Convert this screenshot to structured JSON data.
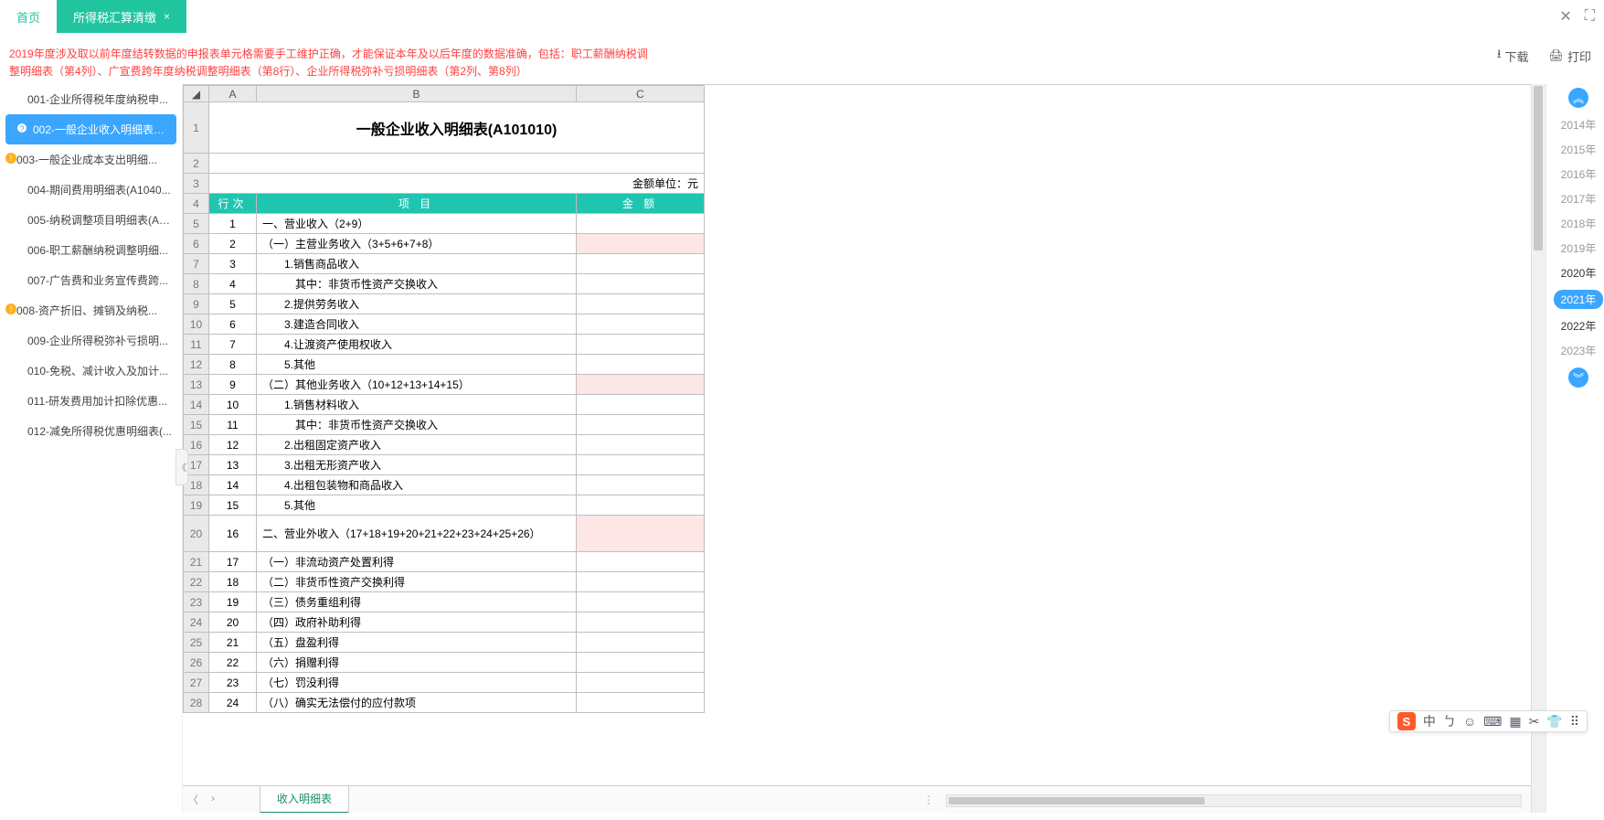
{
  "tabs": {
    "home": "首页",
    "active": "所得税汇算清缴"
  },
  "notice": "2019年度涉及取以前年度结转数据的申报表单元格需要手工维护正确，才能保证本年及以后年度的数据准确，包括：职工薪酬纳税调整明细表（第4列）、广宣费跨年度纳税调整明细表（第8行）、企业所得税弥补亏损明细表（第2列、第8列）",
  "toolbar": {
    "download": "下载",
    "print": "打印"
  },
  "sidebar": [
    {
      "label": "001-企业所得税年度纳税申...",
      "badge": null
    },
    {
      "label": "002-一般企业收入明细表(A1...",
      "badge": "q",
      "active": true
    },
    {
      "label": "003-一般企业成本支出明细...",
      "badge": "w"
    },
    {
      "label": "004-期间费用明细表(A1040...",
      "badge": null
    },
    {
      "label": "005-纳税调整项目明细表(A1...",
      "badge": null
    },
    {
      "label": "006-职工薪酬纳税调整明细...",
      "badge": null
    },
    {
      "label": "007-广告费和业务宣传费跨...",
      "badge": null
    },
    {
      "label": "008-资产折旧、摊销及纳税...",
      "badge": "w"
    },
    {
      "label": "009-企业所得税弥补亏损明...",
      "badge": null
    },
    {
      "label": "010-免税、减计收入及加计...",
      "badge": null
    },
    {
      "label": "011-研发费用加计扣除优惠...",
      "badge": null
    },
    {
      "label": "012-减免所得税优惠明细表(...",
      "badge": null
    }
  ],
  "sheet": {
    "columns": [
      "A",
      "B",
      "C"
    ],
    "title": "一般企业收入明细表(A101010)",
    "unit_label": "金额单位：元",
    "header": {
      "a": "行次",
      "b": "项  目",
      "c": "金  额"
    },
    "rows": [
      {
        "n": 5,
        "a": "1",
        "b": "一、营业收入（2+9）",
        "pink": false
      },
      {
        "n": 6,
        "a": "2",
        "b": "（一）主营业务收入（3+5+6+7+8）",
        "pink": true
      },
      {
        "n": 7,
        "a": "3",
        "b": "　　1.销售商品收入",
        "pink": false
      },
      {
        "n": 8,
        "a": "4",
        "b": "　　　其中：非货币性资产交换收入",
        "pink": false
      },
      {
        "n": 9,
        "a": "5",
        "b": "　　2.提供劳务收入",
        "pink": false
      },
      {
        "n": 10,
        "a": "6",
        "b": "　　3.建造合同收入",
        "pink": false
      },
      {
        "n": 11,
        "a": "7",
        "b": "　　4.让渡资产使用权收入",
        "pink": false
      },
      {
        "n": 12,
        "a": "8",
        "b": "　　5.其他",
        "pink": false
      },
      {
        "n": 13,
        "a": "9",
        "b": "（二）其他业务收入（10+12+13+14+15）",
        "pink": true
      },
      {
        "n": 14,
        "a": "10",
        "b": "　　1.销售材料收入",
        "pink": false
      },
      {
        "n": 15,
        "a": "11",
        "b": "　　　其中：非货币性资产交换收入",
        "pink": false
      },
      {
        "n": 16,
        "a": "12",
        "b": "　　2.出租固定资产收入",
        "pink": false
      },
      {
        "n": 17,
        "a": "13",
        "b": "　　3.出租无形资产收入",
        "pink": false
      },
      {
        "n": 18,
        "a": "14",
        "b": "　　4.出租包装物和商品收入",
        "pink": false
      },
      {
        "n": 19,
        "a": "15",
        "b": "　　5.其他",
        "pink": false
      },
      {
        "n": 20,
        "a": "16",
        "b": "二、营业外收入（17+18+19+20+21+22+23+24+25+26）",
        "pink": true,
        "tall": true
      },
      {
        "n": 21,
        "a": "17",
        "b": "（一）非流动资产处置利得",
        "pink": false
      },
      {
        "n": 22,
        "a": "18",
        "b": "（二）非货币性资产交换利得",
        "pink": false
      },
      {
        "n": 23,
        "a": "19",
        "b": "（三）债务重组利得",
        "pink": false
      },
      {
        "n": 24,
        "a": "20",
        "b": "（四）政府补助利得",
        "pink": false
      },
      {
        "n": 25,
        "a": "21",
        "b": "（五）盘盈利得",
        "pink": false
      },
      {
        "n": 26,
        "a": "22",
        "b": "（六）捐赠利得",
        "pink": false
      },
      {
        "n": 27,
        "a": "23",
        "b": "（七）罚没利得",
        "pink": false
      },
      {
        "n": 28,
        "a": "24",
        "b": "（八）确实无法偿付的应付款项",
        "pink": false
      }
    ],
    "tab_name": "收入明细表"
  },
  "years": [
    "2014年",
    "2015年",
    "2016年",
    "2017年",
    "2018年",
    "2019年",
    "2020年",
    "2021年",
    "2022年",
    "2023年"
  ],
  "year_selected": "2021年",
  "year_em": [
    "2020年",
    "2022年"
  ],
  "ime": [
    "中",
    "ㄅ",
    "☺",
    "⌨",
    "▦",
    "✂",
    "👕",
    "⠿"
  ]
}
